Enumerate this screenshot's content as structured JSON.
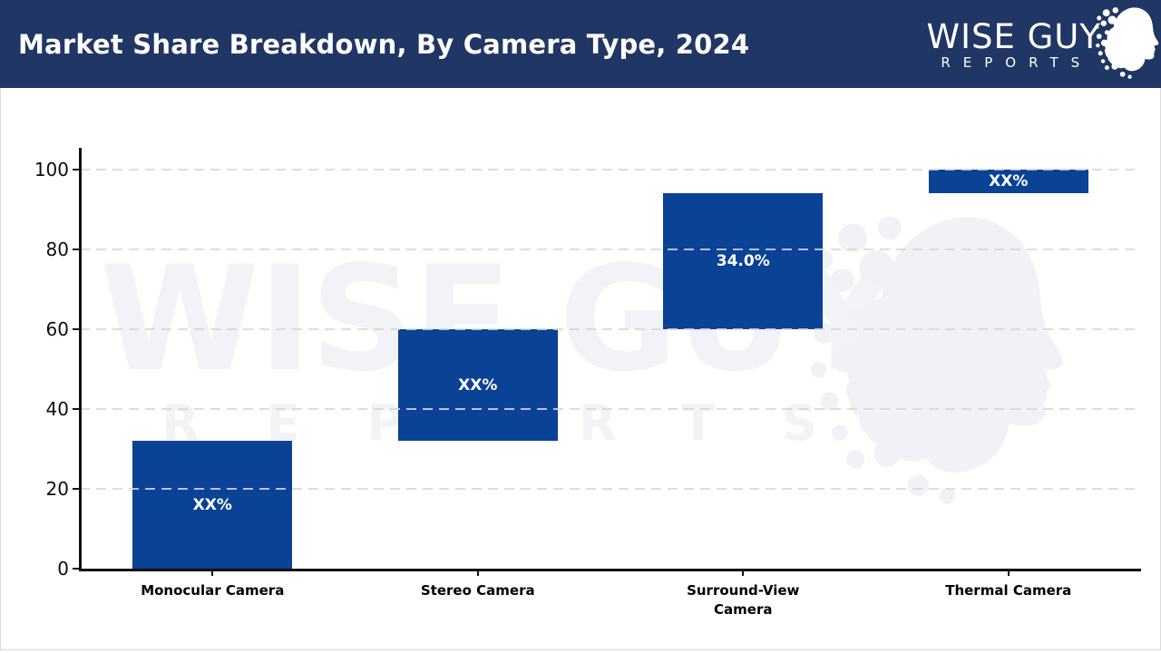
{
  "header": {
    "title": "Market Share Breakdown, By Camera Type, 2024",
    "logo": {
      "line1": "WISE GUY",
      "line2": "REPORTS"
    }
  },
  "watermark": {
    "line1": "WISE GUY",
    "line2": "REPORTS"
  },
  "colors": {
    "header_bg": "#203664",
    "bar": "#0a4296",
    "bar_label": "#ffffff",
    "grid": "rgba(215,215,215,0.85)",
    "axis": "#111111",
    "watermark_text": "#f2f3f6",
    "watermark_head": "#f1f2f5"
  },
  "chart_data": {
    "type": "bar",
    "subtype": "waterfall",
    "title": "Market Share Breakdown, By Camera Type, 2024",
    "categories": [
      "Monocular Camera",
      "Stereo Camera",
      "Surround-View Camera",
      "Thermal Camera"
    ],
    "tick_labels": [
      "Monocular Camera",
      "Stereo Camera",
      "Surround-View\nCamera",
      "Thermal Camera"
    ],
    "values": [
      32,
      28,
      34,
      6
    ],
    "segments": [
      {
        "category": "Monocular Camera",
        "start": 0,
        "end": 32,
        "label": "XX%"
      },
      {
        "category": "Stereo Camera",
        "start": 32,
        "end": 60,
        "label": "XX%"
      },
      {
        "category": "Surround-View Camera",
        "start": 60,
        "end": 94,
        "label": "34.0%"
      },
      {
        "category": "Thermal Camera",
        "start": 94,
        "end": 100,
        "label": "XX%"
      }
    ],
    "xlabel": "",
    "ylabel": "",
    "ylim": [
      0,
      105
    ],
    "yticks": [
      0,
      20,
      40,
      60,
      80,
      100
    ],
    "grid": "dashed horizontal, drawn over bars",
    "legend": "none"
  }
}
